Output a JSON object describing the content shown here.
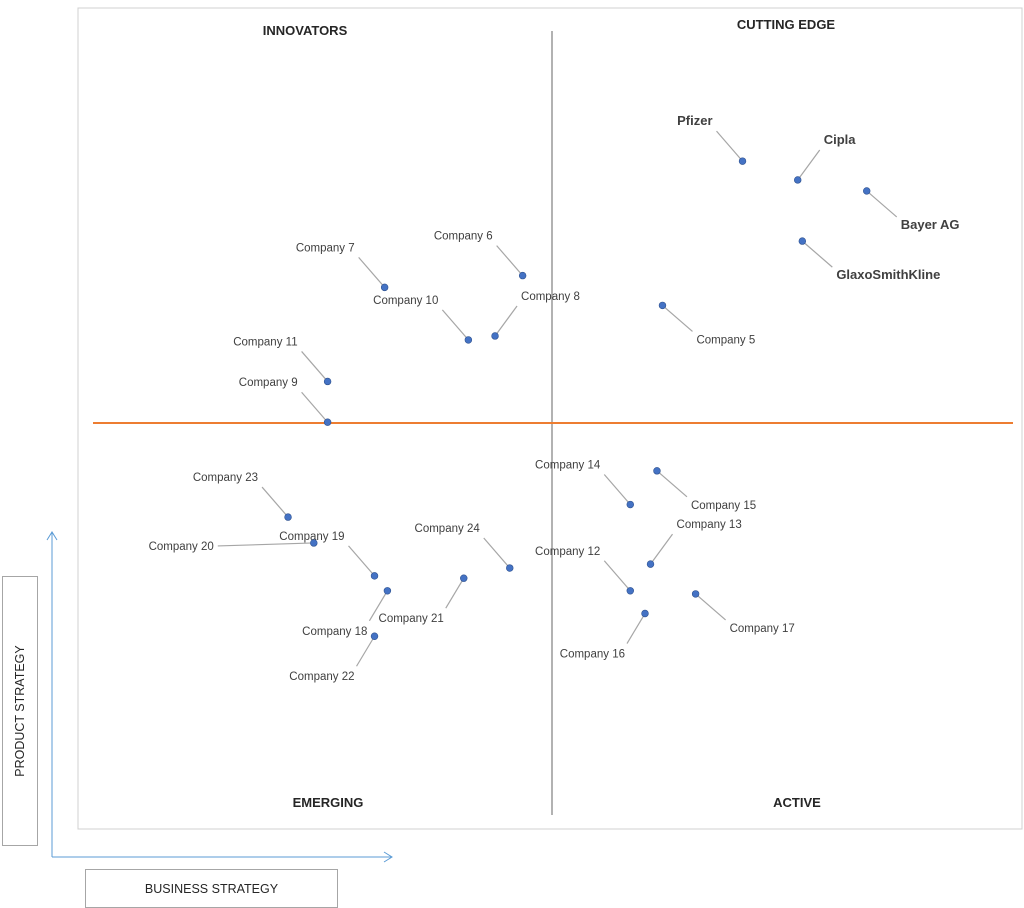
{
  "chart_data": {
    "type": "scatter",
    "title": "",
    "xlabel": "BUSINESS STRATEGY",
    "ylabel": "PRODUCT STRATEGY",
    "xlim": [
      0,
      100
    ],
    "ylim": [
      0,
      100
    ],
    "grid": false,
    "quadrants": {
      "top_left": "INNOVATORS",
      "top_right": "CUTTING EDGE",
      "bottom_left": "EMERGING",
      "bottom_right": "ACTIVE"
    },
    "points": [
      {
        "name": "Pfizer",
        "x": 70.6,
        "y": 83.4,
        "label_position": "upper-left",
        "emphasis": true
      },
      {
        "name": "Cipla",
        "x": 76.6,
        "y": 81.0,
        "label_position": "upper-right",
        "emphasis": true
      },
      {
        "name": "Bayer AG",
        "x": 84.1,
        "y": 79.6,
        "label_position": "lower-right",
        "emphasis": true
      },
      {
        "name": "GlaxoSmithKline",
        "x": 77.1,
        "y": 73.2,
        "label_position": "lower-right",
        "emphasis": true
      },
      {
        "name": "Company 5",
        "x": 61.9,
        "y": 65.0,
        "label_position": "lower-right",
        "emphasis": false
      },
      {
        "name": "Company 6",
        "x": 46.7,
        "y": 68.8,
        "label_position": "upper-left",
        "emphasis": false
      },
      {
        "name": "Company 7",
        "x": 31.7,
        "y": 67.3,
        "label_position": "upper-left",
        "emphasis": false
      },
      {
        "name": "Company 8",
        "x": 43.7,
        "y": 61.1,
        "label_position": "upper-right",
        "emphasis": false
      },
      {
        "name": "Company 9",
        "x": 25.5,
        "y": 50.1,
        "label_position": "upper-left",
        "emphasis": false
      },
      {
        "name": "Company 10",
        "x": 40.8,
        "y": 60.6,
        "label_position": "upper-left",
        "emphasis": false
      },
      {
        "name": "Company 11",
        "x": 25.5,
        "y": 55.3,
        "label_position": "upper-left",
        "emphasis": false
      },
      {
        "name": "Company 12",
        "x": 58.4,
        "y": 28.6,
        "label_position": "upper-left",
        "emphasis": false
      },
      {
        "name": "Company 13",
        "x": 60.6,
        "y": 32.0,
        "label_position": "upper-right",
        "emphasis": false
      },
      {
        "name": "Company 14",
        "x": 58.4,
        "y": 39.6,
        "label_position": "upper-left",
        "emphasis": false
      },
      {
        "name": "Company 15",
        "x": 61.3,
        "y": 43.9,
        "label_position": "lower-right",
        "emphasis": false
      },
      {
        "name": "Company 16",
        "x": 60.0,
        "y": 25.7,
        "label_position": "lower-left",
        "emphasis": false
      },
      {
        "name": "Company 17",
        "x": 65.5,
        "y": 28.2,
        "label_position": "lower-right",
        "emphasis": false
      },
      {
        "name": "Company 18",
        "x": 32.0,
        "y": 28.6,
        "label_position": "lower-left",
        "emphasis": false
      },
      {
        "name": "Company 19",
        "x": 30.6,
        "y": 30.5,
        "label_position": "upper-left",
        "emphasis": false
      },
      {
        "name": "Company 20",
        "x": 24.0,
        "y": 34.7,
        "label_position": "left",
        "emphasis": false
      },
      {
        "name": "Company 21",
        "x": 40.3,
        "y": 30.2,
        "label_position": "lower-left",
        "emphasis": false
      },
      {
        "name": "Company 22",
        "x": 30.6,
        "y": 22.8,
        "label_position": "lower-left",
        "emphasis": false
      },
      {
        "name": "Company 23",
        "x": 21.2,
        "y": 38.0,
        "label_position": "upper-left",
        "emphasis": false
      },
      {
        "name": "Company 24",
        "x": 45.3,
        "y": 31.5,
        "label_position": "upper-left",
        "emphasis": false
      }
    ]
  }
}
